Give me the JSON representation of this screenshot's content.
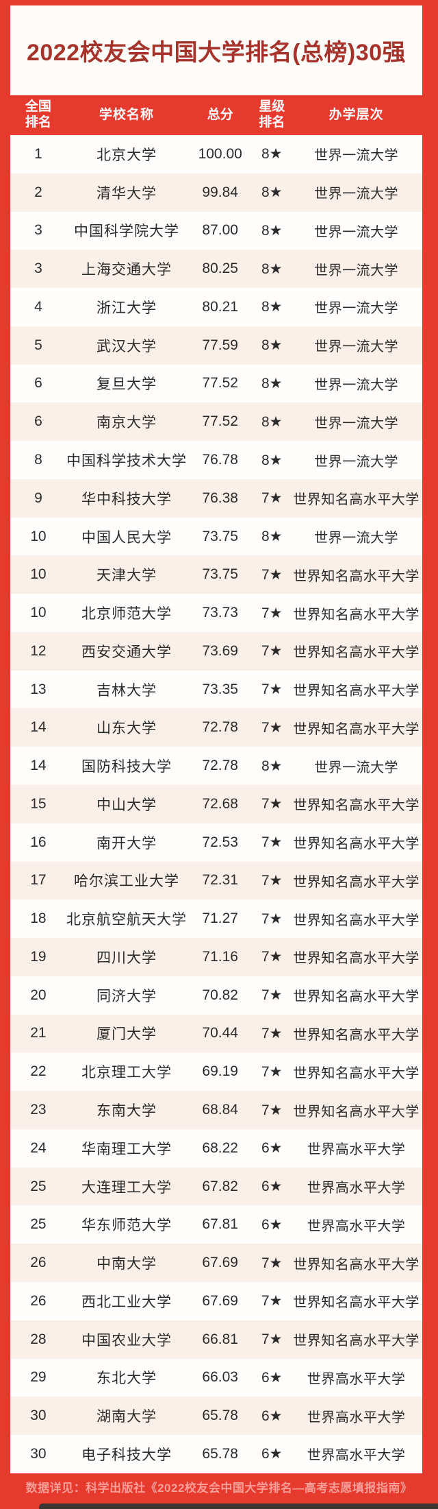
{
  "title": "2022校友会中国大学排名(总榜)30强",
  "colors": {
    "frame_red": "#e73a2e",
    "title_dark_red": "#a6332b",
    "header_text": "#ffffff",
    "row_alt_pink": "#fbefe9",
    "body_text": "#2b2b2b",
    "footer_pink": "#fb9e97",
    "bottom_strip": "#3a3632"
  },
  "header": {
    "cols": [
      {
        "line1": "全国",
        "line2": "排名"
      },
      {
        "line1": "学校名称",
        "line2": ""
      },
      {
        "line1": "总分",
        "line2": ""
      },
      {
        "line1": "星级",
        "line2": "排名"
      },
      {
        "line1": "办学层次",
        "line2": ""
      }
    ]
  },
  "footer": {
    "source": "数据详见：科学出版社《2022校友会中国大学排名—高考志愿填报指南》"
  },
  "chart_data": {
    "type": "table",
    "title": "2022校友会中国大学排名(总榜)30强",
    "columns": [
      "全国排名",
      "学校名称",
      "总分",
      "星级排名",
      "办学层次"
    ],
    "rows": [
      [
        "1",
        "北京大学",
        "100.00",
        "8★",
        "世界一流大学"
      ],
      [
        "2",
        "清华大学",
        "99.84",
        "8★",
        "世界一流大学"
      ],
      [
        "3",
        "中国科学院大学",
        "87.00",
        "8★",
        "世界一流大学"
      ],
      [
        "3",
        "上海交通大学",
        "80.25",
        "8★",
        "世界一流大学"
      ],
      [
        "4",
        "浙江大学",
        "80.21",
        "8★",
        "世界一流大学"
      ],
      [
        "5",
        "武汉大学",
        "77.59",
        "8★",
        "世界一流大学"
      ],
      [
        "6",
        "复旦大学",
        "77.52",
        "8★",
        "世界一流大学"
      ],
      [
        "6",
        "南京大学",
        "77.52",
        "8★",
        "世界一流大学"
      ],
      [
        "8",
        "中国科学技术大学",
        "76.78",
        "8★",
        "世界一流大学"
      ],
      [
        "9",
        "华中科技大学",
        "76.38",
        "7★",
        "世界知名高水平大学"
      ],
      [
        "10",
        "中国人民大学",
        "73.75",
        "8★",
        "世界一流大学"
      ],
      [
        "10",
        "天津大学",
        "73.75",
        "7★",
        "世界知名高水平大学"
      ],
      [
        "10",
        "北京师范大学",
        "73.73",
        "7★",
        "世界知名高水平大学"
      ],
      [
        "12",
        "西安交通大学",
        "73.69",
        "7★",
        "世界知名高水平大学"
      ],
      [
        "13",
        "吉林大学",
        "73.35",
        "7★",
        "世界知名高水平大学"
      ],
      [
        "14",
        "山东大学",
        "72.78",
        "7★",
        "世界知名高水平大学"
      ],
      [
        "14",
        "国防科技大学",
        "72.78",
        "8★",
        "世界一流大学"
      ],
      [
        "15",
        "中山大学",
        "72.68",
        "7★",
        "世界知名高水平大学"
      ],
      [
        "16",
        "南开大学",
        "72.53",
        "7★",
        "世界知名高水平大学"
      ],
      [
        "17",
        "哈尔滨工业大学",
        "72.31",
        "7★",
        "世界知名高水平大学"
      ],
      [
        "18",
        "北京航空航天大学",
        "71.27",
        "7★",
        "世界知名高水平大学"
      ],
      [
        "19",
        "四川大学",
        "71.16",
        "7★",
        "世界知名高水平大学"
      ],
      [
        "20",
        "同济大学",
        "70.82",
        "7★",
        "世界知名高水平大学"
      ],
      [
        "21",
        "厦门大学",
        "70.44",
        "7★",
        "世界知名高水平大学"
      ],
      [
        "22",
        "北京理工大学",
        "69.19",
        "7★",
        "世界知名高水平大学"
      ],
      [
        "23",
        "东南大学",
        "68.84",
        "7★",
        "世界知名高水平大学"
      ],
      [
        "24",
        "华南理工大学",
        "68.22",
        "6★",
        "世界高水平大学"
      ],
      [
        "25",
        "大连理工大学",
        "67.82",
        "6★",
        "世界高水平大学"
      ],
      [
        "25",
        "华东师范大学",
        "67.81",
        "6★",
        "世界高水平大学"
      ],
      [
        "26",
        "中南大学",
        "67.69",
        "7★",
        "世界知名高水平大学"
      ],
      [
        "26",
        "西北工业大学",
        "67.69",
        "7★",
        "世界知名高水平大学"
      ],
      [
        "28",
        "中国农业大学",
        "66.81",
        "7★",
        "世界知名高水平大学"
      ],
      [
        "29",
        "东北大学",
        "66.03",
        "6★",
        "世界高水平大学"
      ],
      [
        "30",
        "湖南大学",
        "65.78",
        "6★",
        "世界高水平大学"
      ],
      [
        "30",
        "电子科技大学",
        "65.78",
        "6★",
        "世界高水平大学"
      ]
    ]
  }
}
